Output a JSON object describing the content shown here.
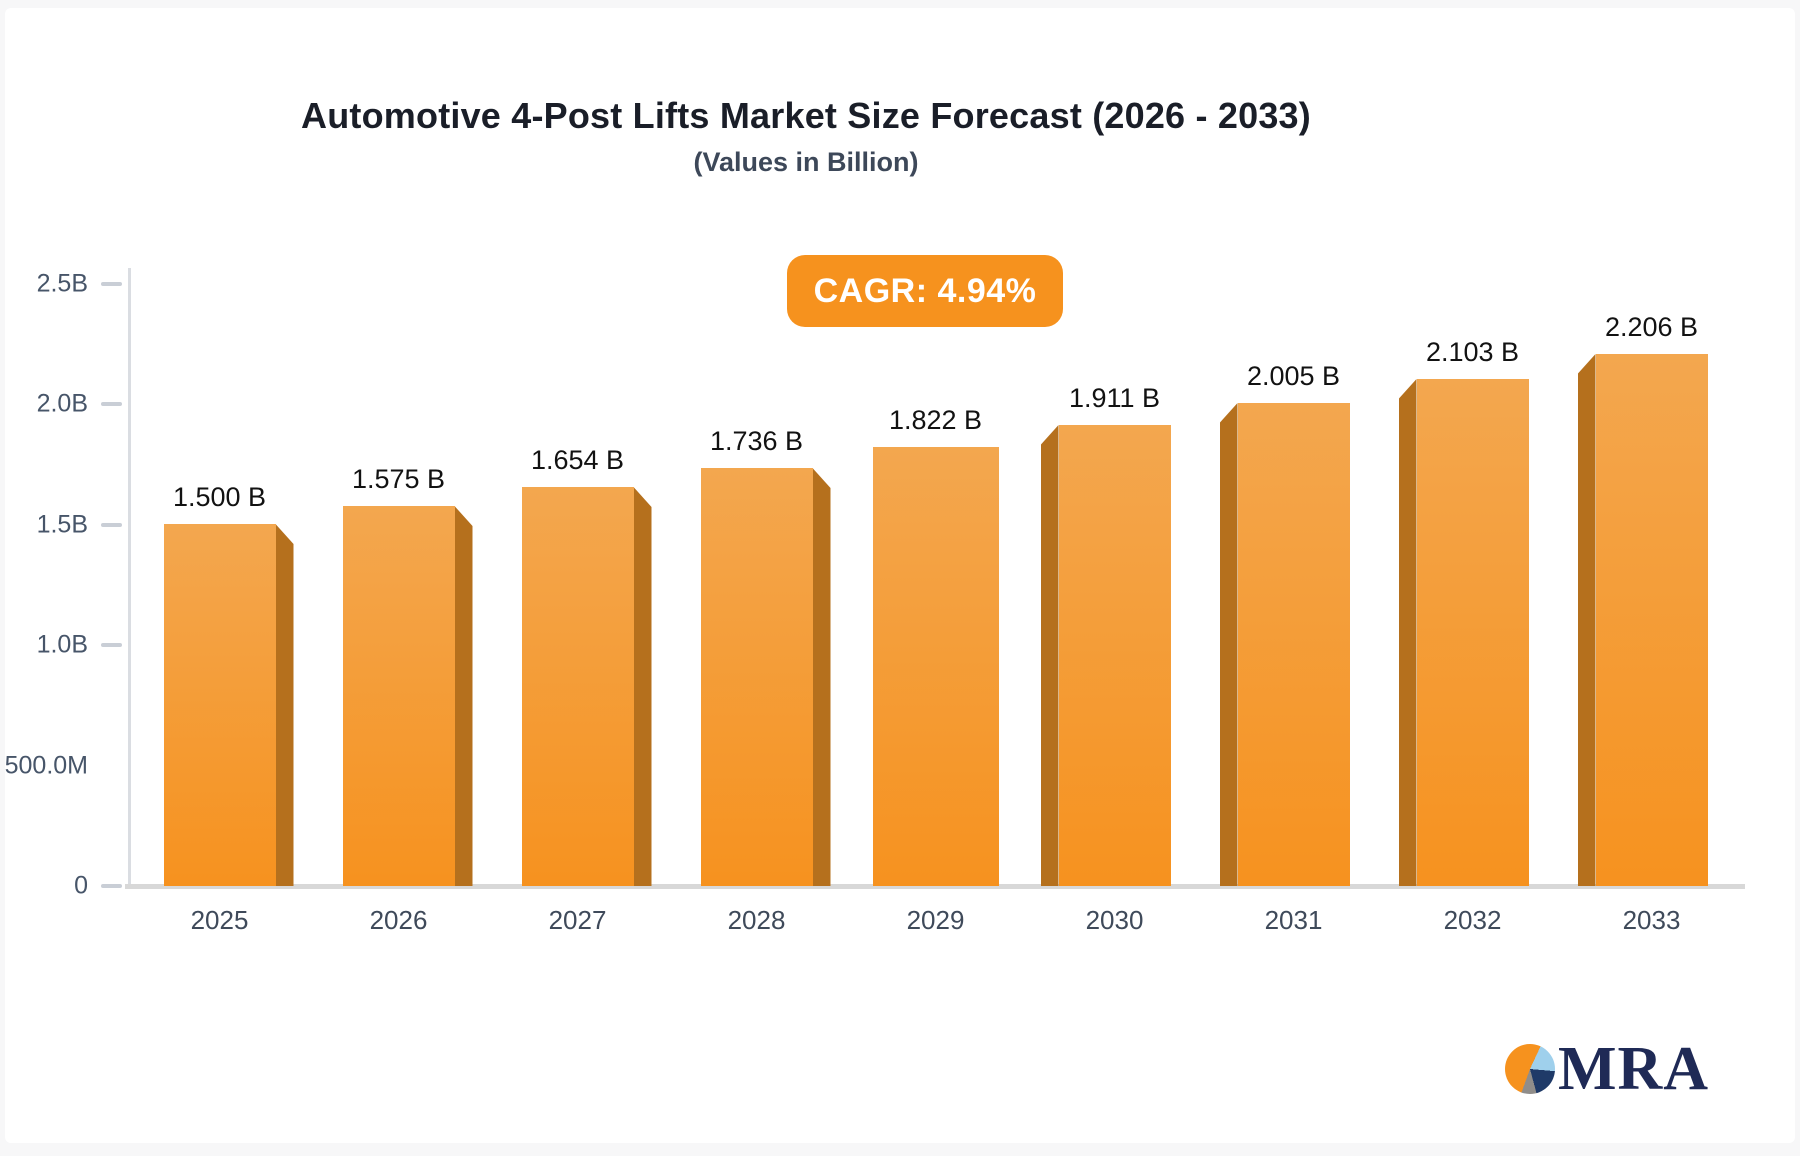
{
  "header": {
    "title": "Automotive 4-Post Lifts Market Size Forecast (2026 - 2033)",
    "subtitle": "(Values in Billion)"
  },
  "badge": {
    "label": "CAGR: 4.94%",
    "color": "#f6921e",
    "text_color": "#ffffff"
  },
  "chart_data": {
    "type": "bar",
    "title": "Automotive 4-Post Lifts Market Size Forecast (2026 - 2033)",
    "subtitle": "(Values in Billion)",
    "categories": [
      "2025",
      "2026",
      "2027",
      "2028",
      "2029",
      "2030",
      "2031",
      "2032",
      "2033"
    ],
    "values": [
      1.5,
      1.575,
      1.654,
      1.736,
      1.822,
      1.911,
      2.005,
      2.103,
      2.206
    ],
    "value_labels": [
      "1.500 B",
      "1.575 B",
      "1.654 B",
      "1.736 B",
      "1.822 B",
      "1.911 B",
      "2.005 B",
      "2.103 B",
      "2.206 B"
    ],
    "cagr_label": "CAGR: 4.94%",
    "xlabel": "",
    "ylabel": "",
    "ylim": [
      0,
      2.5
    ],
    "yticks": [
      {
        "label": "2.5B",
        "value": 2.5,
        "dash": true
      },
      {
        "label": "2.0B",
        "value": 2.0,
        "dash": true
      },
      {
        "label": "1.5B",
        "value": 1.5,
        "dash": true
      },
      {
        "label": "1.0B",
        "value": 1.0,
        "dash": true
      },
      {
        "label": "500.0M",
        "value": 0.5,
        "dash": false
      },
      {
        "label": "0",
        "value": 0.0,
        "dash": true
      }
    ],
    "grid": false,
    "legend": false,
    "colors": {
      "bar_top": "#f3a74f",
      "bar_bottom": "#f6921f",
      "bar_side": "#b5701d",
      "axis_text": "#475569",
      "value_text": "#121212"
    }
  },
  "logo": {
    "text": "MRA",
    "text_color": "#1f2a56",
    "pie_colors": [
      "#f6921e",
      "#9fd0ec",
      "#1f3a68",
      "#908d8a"
    ]
  }
}
